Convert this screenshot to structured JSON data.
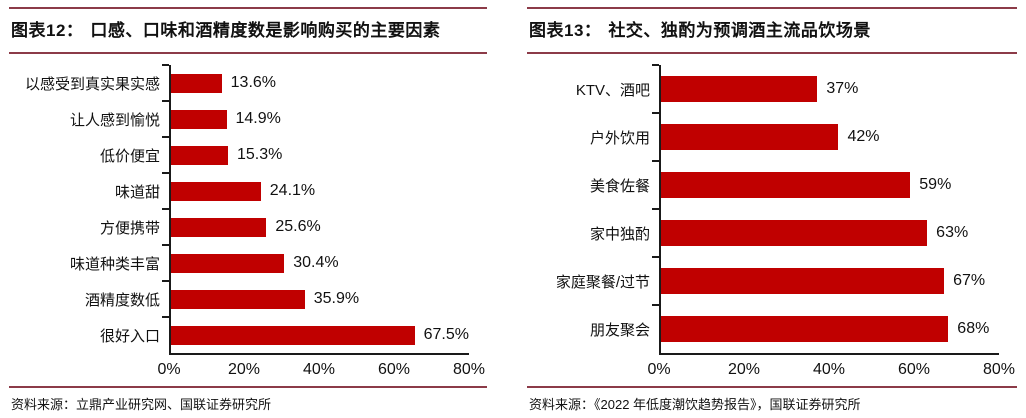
{
  "page": {
    "background": "#ffffff"
  },
  "colors": {
    "bar": "#c00000",
    "rule": "#8c3b48",
    "axis": "#1a1a1a",
    "text": "#111111"
  },
  "chart_data": [
    {
      "id": "fig12",
      "type": "bar",
      "orientation": "horizontal",
      "fig_no": "图表12：",
      "title": "口感、口味和酒精度数是影响购买的主要因素",
      "categories": [
        "以感受到真实果实感",
        "让人感到愉悦",
        "低价便宜",
        "味道甜",
        "方便携带",
        "味道种类丰富",
        "酒精度数低",
        "很好入口"
      ],
      "values": [
        13.6,
        14.9,
        15.3,
        24.1,
        25.6,
        30.4,
        35.9,
        67.5
      ],
      "value_labels": [
        "13.6%",
        "14.9%",
        "15.3%",
        "24.1%",
        "25.6%",
        "30.4%",
        "35.9%",
        "67.5%"
      ],
      "x_ticks": [
        "0%",
        "20%",
        "40%",
        "60%",
        "80%"
      ],
      "xlim": [
        0,
        80
      ],
      "grid": false,
      "legend": false,
      "bar_color": "#c00000",
      "source_label": "资料来源：",
      "source": "立鼎产业研究网、国联证券研究所"
    },
    {
      "id": "fig13",
      "type": "bar",
      "orientation": "horizontal",
      "fig_no": "图表13：",
      "title": "社交、独酌为预调酒主流品饮场景",
      "categories": [
        "KTV、酒吧",
        "户外饮用",
        "美食佐餐",
        "家中独酌",
        "家庭聚餐/过节",
        "朋友聚会"
      ],
      "values": [
        37,
        42,
        59,
        63,
        67,
        68
      ],
      "value_labels": [
        "37%",
        "42%",
        "59%",
        "63%",
        "67%",
        "68%"
      ],
      "x_ticks": [
        "0%",
        "20%",
        "40%",
        "60%",
        "80%"
      ],
      "xlim": [
        0,
        80
      ],
      "grid": false,
      "legend": false,
      "bar_color": "#c00000",
      "source_label": "资料来源：",
      "source": "《2022 年低度潮饮趋势报告》，国联证券研究所"
    }
  ]
}
